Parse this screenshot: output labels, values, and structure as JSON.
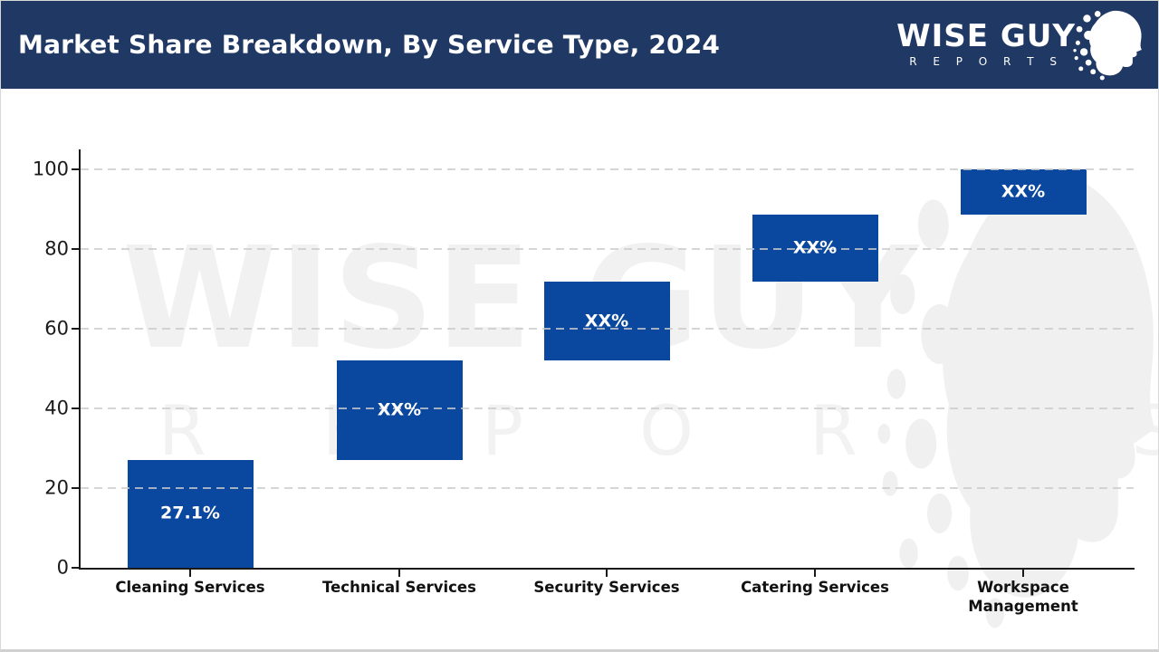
{
  "header": {
    "title": "Market Share Breakdown, By Service Type, 2024",
    "logo": {
      "line1": "WISE GUY",
      "line2": "R E P O R T S"
    }
  },
  "watermark": {
    "line1": "WISE GUY",
    "line2": "R E P O R T S"
  },
  "chart_data": {
    "type": "bar",
    "subtype": "waterfall",
    "title": "Market Share Breakdown, By Service Type, 2024",
    "categories": [
      "Cleaning Services",
      "Technical Services",
      "Security Services",
      "Catering Services",
      "Workspace Management"
    ],
    "bars": [
      {
        "category": "Cleaning Services",
        "label": "27.1%",
        "start": 0,
        "end": 27.1
      },
      {
        "category": "Technical Services",
        "label": "XX%",
        "start": 27.1,
        "end": 52.0
      },
      {
        "category": "Security Services",
        "label": "XX%",
        "start": 52.0,
        "end": 71.8
      },
      {
        "category": "Catering Services",
        "label": "XX%",
        "start": 71.8,
        "end": 88.6
      },
      {
        "category": "Workspace Management",
        "label": "XX%",
        "start": 88.6,
        "end": 100
      }
    ],
    "yticks": [
      0,
      20,
      40,
      60,
      80,
      100
    ],
    "ylim": [
      0,
      100
    ],
    "xlabel": "",
    "ylabel": "",
    "grid": "dashed-horizontal-over-bars",
    "legend": "none",
    "colors": {
      "bar": "#0A479E",
      "bar_label": "#FFFFFF",
      "header_bg": "#203864",
      "header_text": "#FFFFFF",
      "grid": "#CBCBCB",
      "axis": "#1A1A1A",
      "watermark": "#F1F1F2"
    }
  }
}
